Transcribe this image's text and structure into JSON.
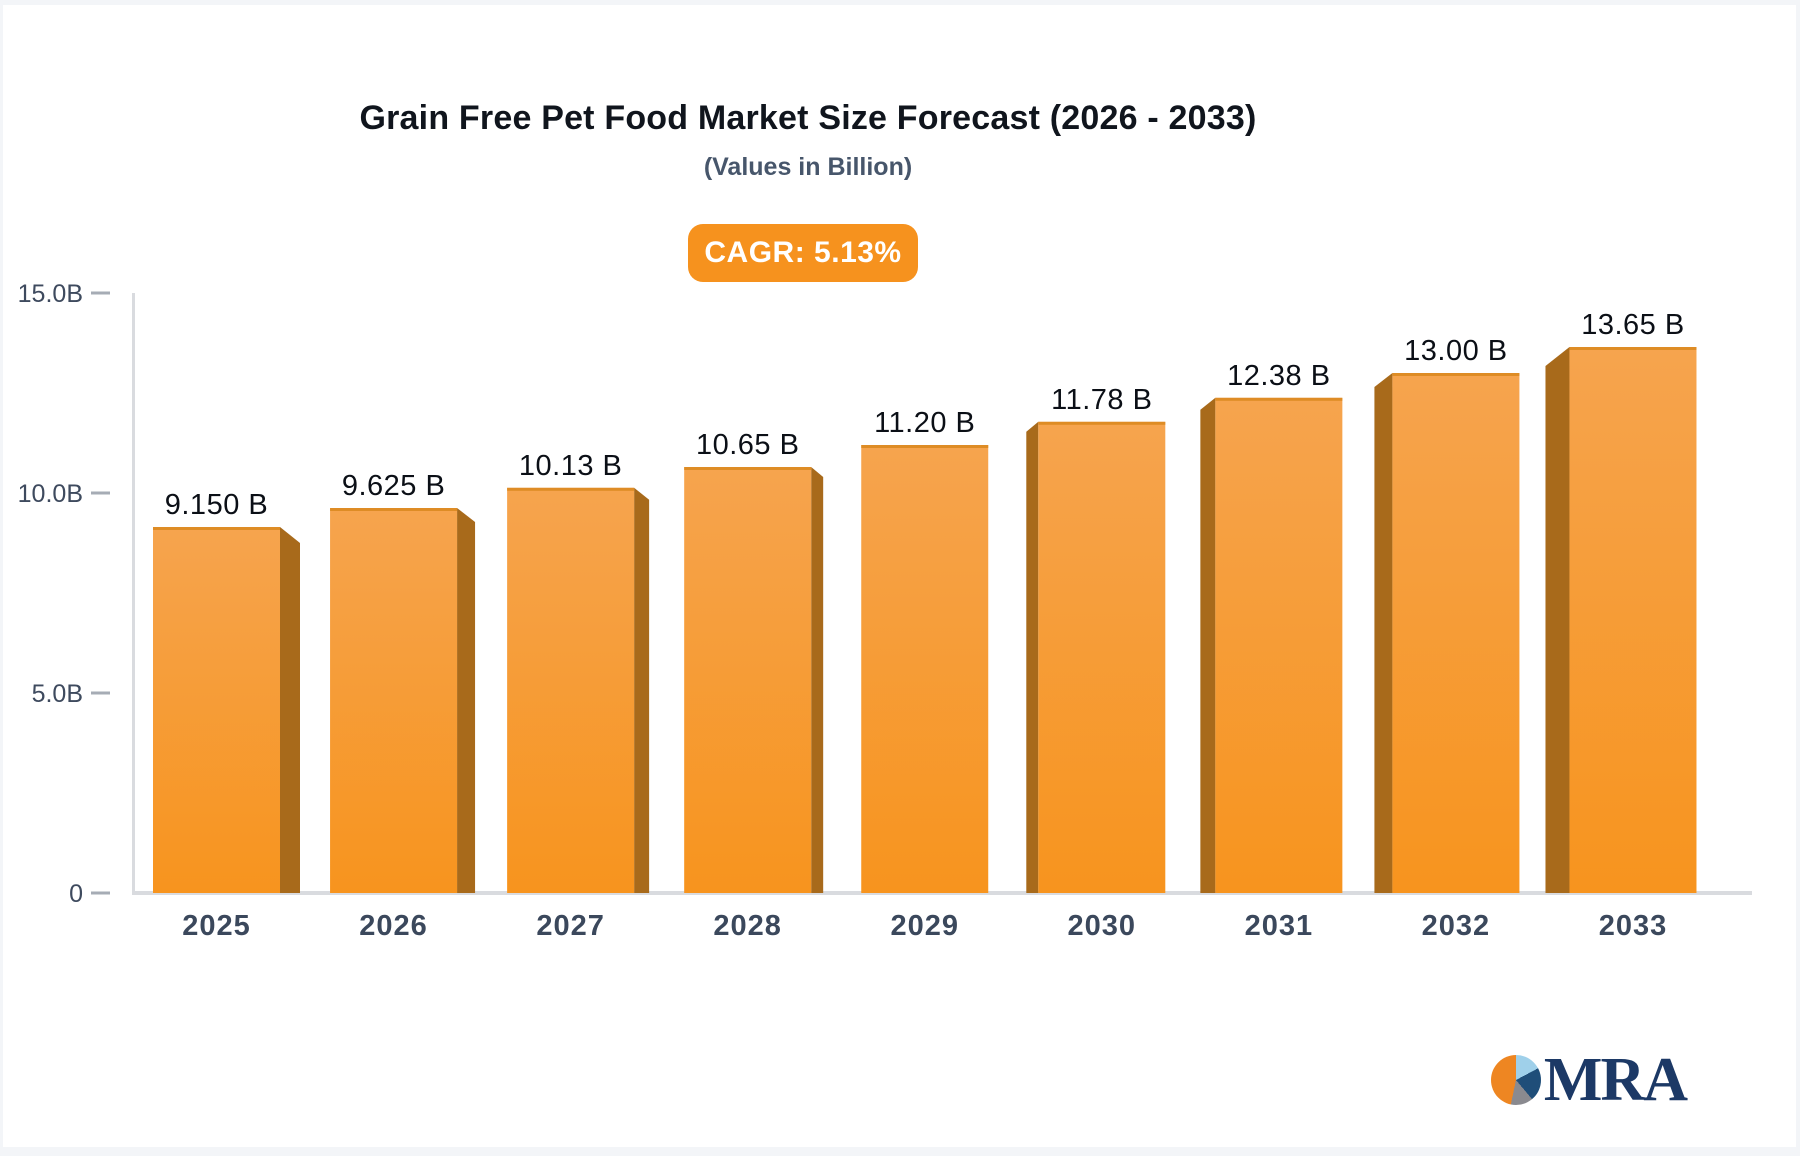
{
  "title": "Grain Free Pet Food Market Size Forecast (2026 - 2033)",
  "subtitle": "(Values in Billion)",
  "cagr_badge": "CAGR: 5.13%",
  "logo": {
    "text": "MRA",
    "pie_colors": [
      "#ee8622",
      "#9fd0ea",
      "#1f4e79",
      "#8a8a8f"
    ]
  },
  "colors": {
    "badge_bg": "#f6921e",
    "bar_top": "#f6a44e",
    "bar_bottom": "#f7941e",
    "bar_side": "#a86a1b",
    "bar_top_edge": "#d9881f",
    "axis_line": "#d9dbdf",
    "tick_dash": "#a6acb5"
  },
  "chart_data": {
    "type": "bar",
    "title": "Grain Free Pet Food Market Size Forecast (2026 - 2033)",
    "subtitle": "(Values in Billion)",
    "xlabel": "",
    "ylabel": "Values in Billion",
    "ylim": [
      0,
      15
    ],
    "grid": false,
    "legend": "none",
    "categories": [
      "2025",
      "2026",
      "2027",
      "2028",
      "2029",
      "2030",
      "2031",
      "2032",
      "2033"
    ],
    "values": [
      9.15,
      9.625,
      10.13,
      10.65,
      11.2,
      11.78,
      12.38,
      13.0,
      13.65
    ],
    "value_labels": [
      "9.150 B",
      "9.625 B",
      "10.13 B",
      "10.65 B",
      "11.20 B",
      "11.78 B",
      "12.38 B",
      "13.00 B",
      "13.65 B"
    ],
    "yticks": [
      {
        "value": 0,
        "label": "0"
      },
      {
        "value": 5,
        "label": "5.0B"
      },
      {
        "value": 10,
        "label": "10.0B"
      },
      {
        "value": 15,
        "label": "15.0B"
      }
    ]
  }
}
